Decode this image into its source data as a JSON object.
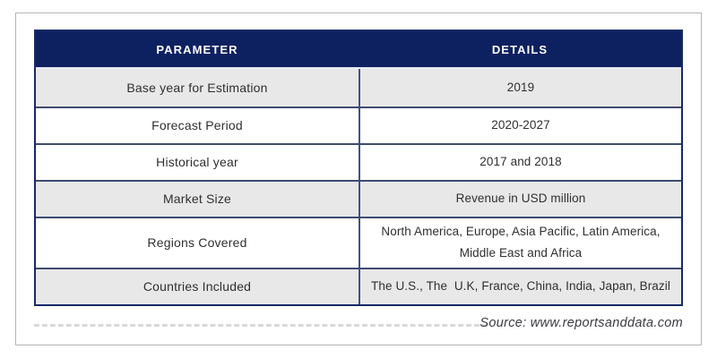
{
  "table": {
    "column_headers": [
      "PARAMETER",
      "DETAILS"
    ],
    "rows": [
      {
        "parameter": "Base year for Estimation",
        "details": "2019",
        "shaded": true
      },
      {
        "parameter": "Forecast Period",
        "details": "2020-2027",
        "shaded": false
      },
      {
        "parameter": "Historical year",
        "details": "2017 and 2018",
        "shaded": false
      },
      {
        "parameter": "Market Size",
        "details": "Revenue in USD million",
        "shaded": true
      },
      {
        "parameter": "Regions Covered",
        "details": "North America, Europe, Asia Pacific, Latin America, Middle East and Africa",
        "shaded": false
      },
      {
        "parameter": "Countries Included",
        "details": "The U.S., The  U.K, France, China, India, Japan, Brazil",
        "shaded": true
      }
    ]
  },
  "source": {
    "label": "Source: www.reportsanddata.com"
  },
  "colors": {
    "header_bg": "#0d2161",
    "header_text": "#ffffff",
    "shaded_row_bg": "#e8e8e8",
    "row_bg": "#ffffff",
    "outer_border": "#182a66",
    "grid_line": "#3f4b70",
    "column_divider": "#42528c",
    "frame_border": "#b5b5b5",
    "body_text": "#2f2f2f"
  }
}
